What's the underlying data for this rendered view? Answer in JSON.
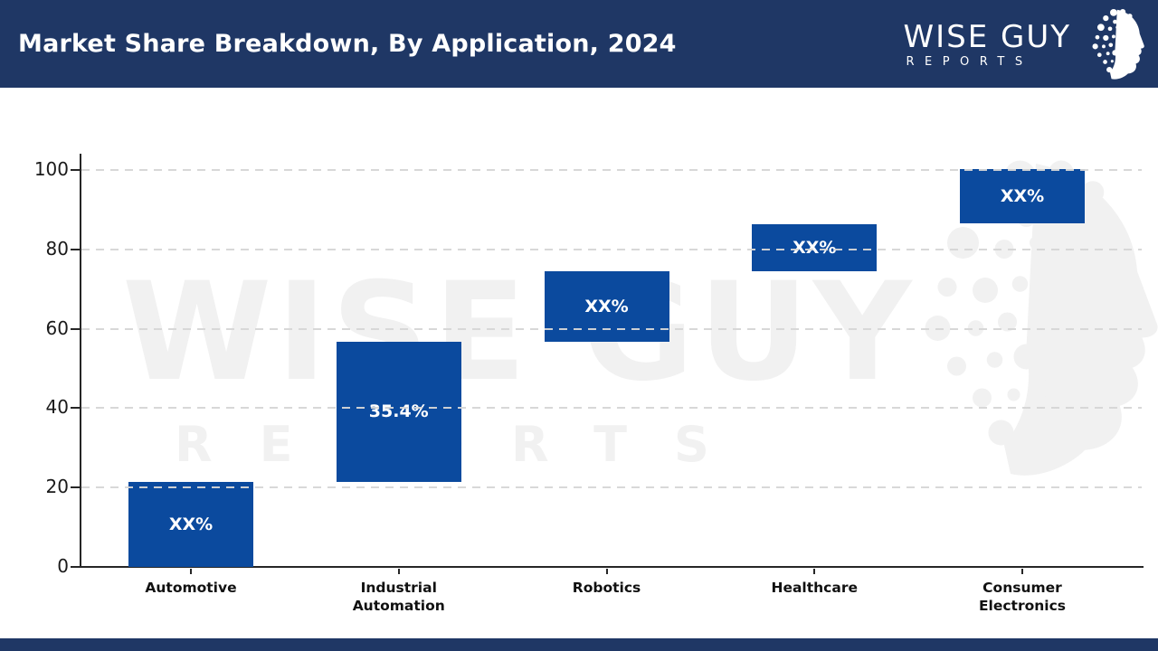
{
  "header": {
    "title": "Market Share Breakdown, By Application, 2024",
    "logo": {
      "line1": "WISE GUY",
      "line2": "REPORTS"
    }
  },
  "watermark": {
    "line1": "WISE GUY",
    "line2": "REPORTS"
  },
  "colors": {
    "header_bg": "#1F3765",
    "footer_bg": "#1F3765",
    "bar_fill": "#0B4A9E",
    "axis": "#262626",
    "gridline": "#d6d6d6",
    "tick_text": "#1a1a1a",
    "bar_label_text": "#ffffff",
    "watermark": "#f1f1f1"
  },
  "chart_data": {
    "type": "bar",
    "subtype": "waterfall-floating-bars",
    "title": "Market Share Breakdown, By Application, 2024",
    "xlabel": "",
    "ylabel": "",
    "ylim": [
      0,
      104
    ],
    "yticks": [
      0,
      20,
      40,
      60,
      80,
      100
    ],
    "grid": "horizontal dashed, drawn above bars",
    "legend": "none",
    "categories": [
      "Automotive",
      "Industrial Automation",
      "Robotics",
      "Healthcare",
      "Consumer Electronics"
    ],
    "bars": [
      {
        "category": "Automotive",
        "category_lines": [
          "Automotive"
        ],
        "label": "XX%",
        "start": 0,
        "end": 21.4
      },
      {
        "category": "Industrial Automation",
        "category_lines": [
          "Industrial",
          "Automation"
        ],
        "label": "35.4%",
        "start": 21.4,
        "end": 56.8
      },
      {
        "category": "Robotics",
        "category_lines": [
          "Robotics"
        ],
        "label": "XX%",
        "start": 56.8,
        "end": 74.6
      },
      {
        "category": "Healthcare",
        "category_lines": [
          "Healthcare"
        ],
        "label": "XX%",
        "start": 74.6,
        "end": 86.3
      },
      {
        "category": "Consumer Electronics",
        "category_lines": [
          "Consumer",
          "Electronics"
        ],
        "label": "XX%",
        "start": 86.5,
        "end": 100.2
      }
    ]
  }
}
